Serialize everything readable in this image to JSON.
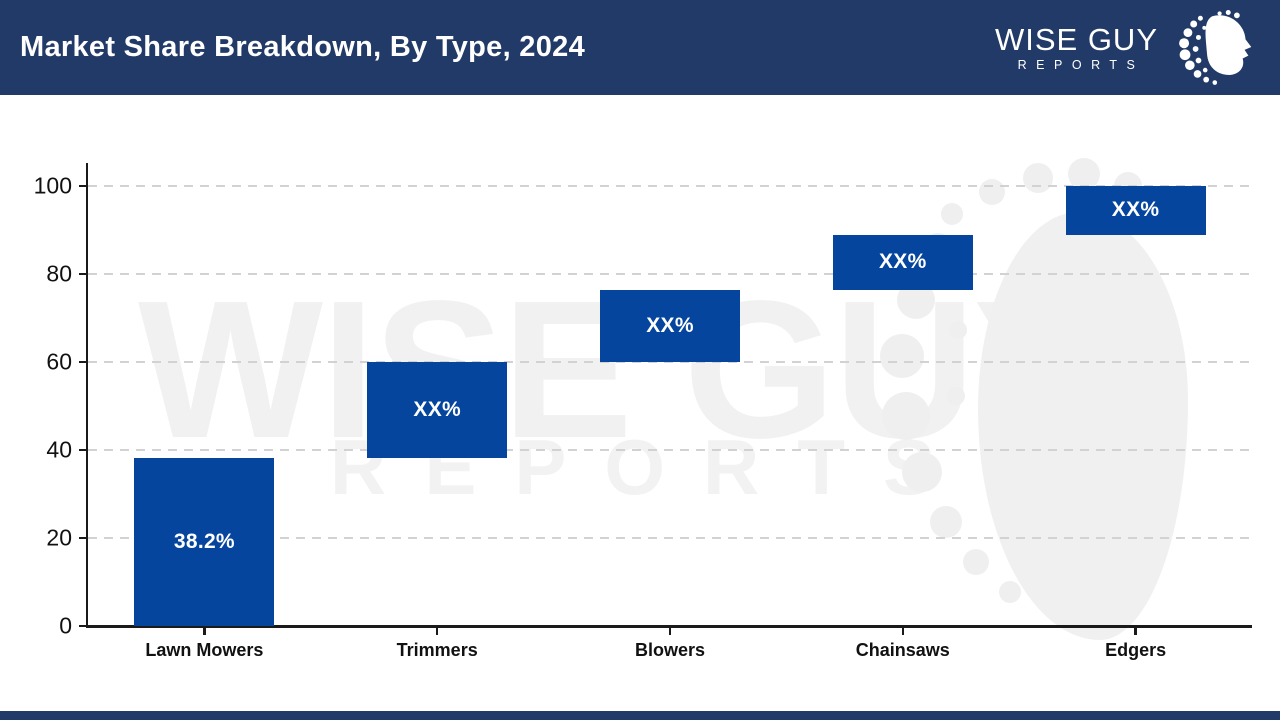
{
  "header": {
    "title": "Market Share Breakdown, By Type, 2024",
    "brand": {
      "line1": "WISE GUY",
      "line2": "REPORTS"
    },
    "bg_color": "#223A67",
    "text_color": "#FFFFFF"
  },
  "watermark": {
    "line1": "WISE GUY",
    "line2": "REPORTS"
  },
  "footer": {
    "bg_color": "#223A67"
  },
  "chart_data": {
    "type": "bar",
    "subtype": "waterfall",
    "title": "Market Share Breakdown, By Type, 2024",
    "categories": [
      "Lawn Mowers",
      "Trimmers",
      "Blowers",
      "Chainsaws",
      "Edgers"
    ],
    "segments": [
      {
        "category": "Lawn Mowers",
        "start": 0,
        "end": 38.2,
        "label": "38.2%"
      },
      {
        "category": "Trimmers",
        "start": 38.2,
        "end": 60.0,
        "label": "XX%"
      },
      {
        "category": "Blowers",
        "start": 60.0,
        "end": 76.4,
        "label": "XX%"
      },
      {
        "category": "Chainsaws",
        "start": 76.4,
        "end": 88.9,
        "label": "XX%"
      },
      {
        "category": "Edgers",
        "start": 88.9,
        "end": 100.0,
        "label": "XX%"
      }
    ],
    "values_masked_as": "XX%",
    "xlabel": "",
    "ylabel": "",
    "ylim": [
      0,
      105
    ],
    "yticks": [
      0,
      20,
      40,
      60,
      80,
      100
    ],
    "grid": "horizontal dashed",
    "legend": "none",
    "bar_color": "#05459E",
    "bar_label_color": "#FFFFFF",
    "gridline_color": "#D2D2D2",
    "axis_color": "#1A1A1A"
  }
}
